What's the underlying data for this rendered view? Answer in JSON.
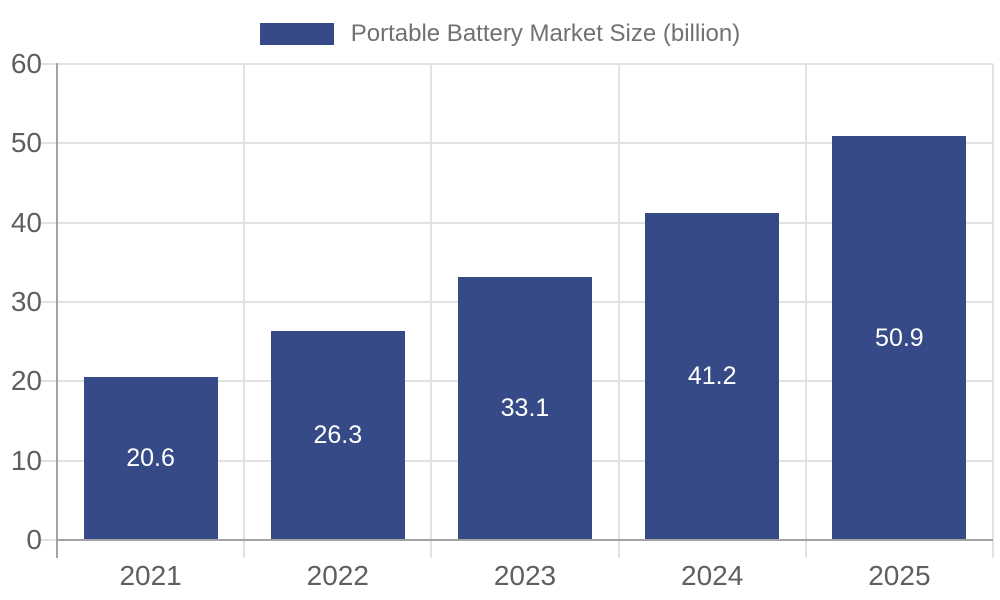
{
  "chart_data": {
    "type": "bar",
    "title": "Portable Battery Market Size (billion)",
    "categories": [
      "2021",
      "2022",
      "2023",
      "2024",
      "2025"
    ],
    "series": [
      {
        "name": "Portable Battery Market Size (billion)",
        "values": [
          20.6,
          26.3,
          33.1,
          41.2,
          50.9
        ]
      }
    ],
    "value_labels": [
      "20.6",
      "26.3",
      "33.1",
      "41.2",
      "50.9"
    ],
    "ylim": [
      0,
      60
    ],
    "yticks": [
      0,
      10,
      20,
      30,
      40,
      50,
      60
    ],
    "grid": true,
    "legend": {
      "position": "top",
      "label": "Portable Battery Market Size (billion)"
    },
    "colors": {
      "bar": "#364A88",
      "bar_label": "#FFFFFF",
      "grid": "#E2E2E2",
      "axis": "#A3A3A3",
      "tick_text": "#5E5F61",
      "legend_text": "#717171",
      "background": "#FFFFFF"
    }
  }
}
